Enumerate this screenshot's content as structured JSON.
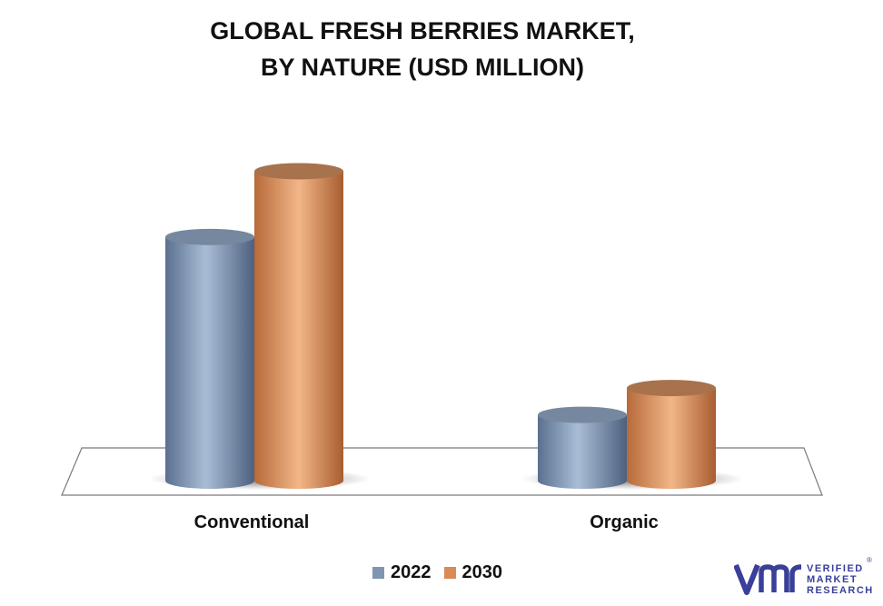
{
  "title_line1": "GLOBAL FRESH BERRIES MARKET,",
  "title_line2": "BY NATURE (USD MILLION)",
  "chart_data": {
    "type": "bar",
    "style": "3d-cylinder",
    "categories": [
      "Conventional",
      "Organic"
    ],
    "series": [
      {
        "name": "2022",
        "values": [
          100,
          27
        ],
        "color": "#8aa2c0"
      },
      {
        "name": "2030",
        "values": [
          127,
          38
        ],
        "color": "#e09a66"
      }
    ],
    "ylim": [
      0,
      135
    ],
    "grid": false,
    "legend_position": "bottom"
  },
  "brand": {
    "line1": "VERIFIED",
    "line2": "MARKET",
    "line3": "RESEARCH",
    "registered": "®",
    "color": "#3a3f99"
  }
}
